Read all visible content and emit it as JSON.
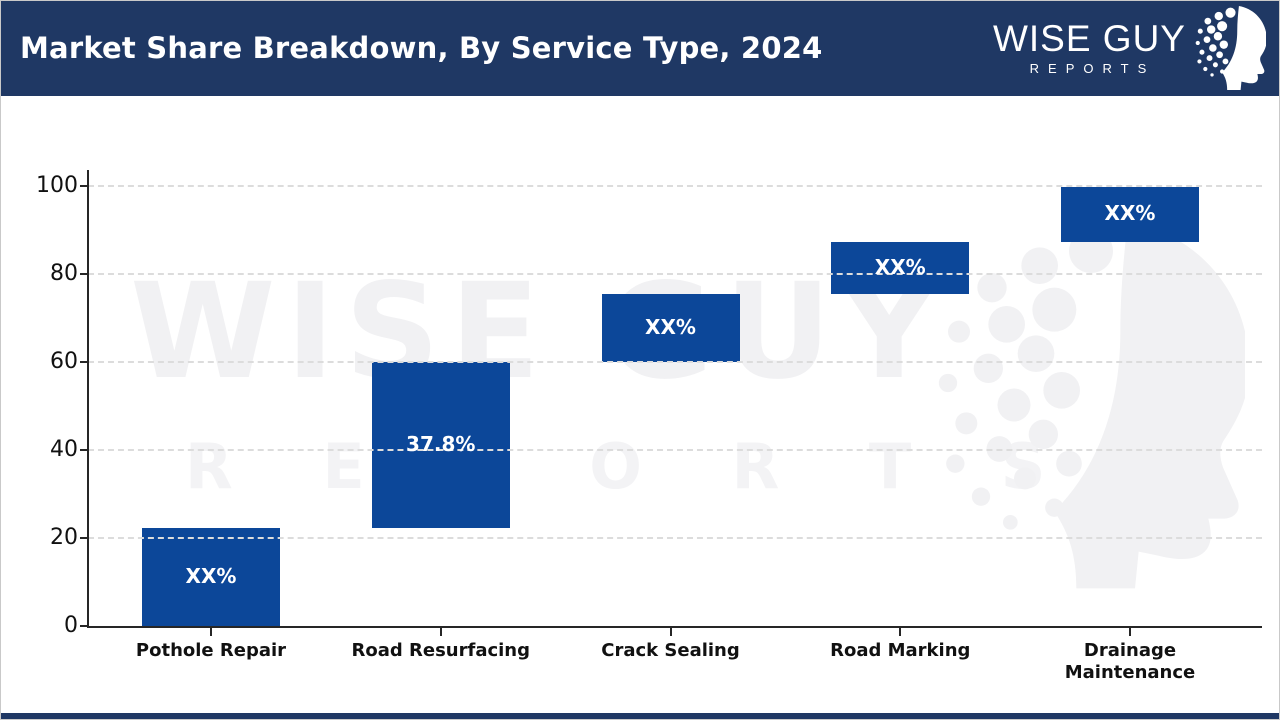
{
  "header": {
    "title": "Market Share Breakdown, By Service Type, 2024",
    "background_color": "#1f3864",
    "logo": {
      "line1": "WISE GUY",
      "line2": "REPORTS"
    }
  },
  "watermark": {
    "line1": "WISE GUY",
    "line2": "R E P O R T S"
  },
  "chart_data": {
    "type": "bar",
    "subtype": "waterfall",
    "title": "Market Share Breakdown, By Service Type, 2024",
    "categories": [
      "Pothole Repair",
      "Road Resurfacing",
      "Crack Sealing",
      "Road Marking",
      "Drainage Maintenance"
    ],
    "category_lines": [
      [
        "Pothole Repair"
      ],
      [
        "Road Resurfacing"
      ],
      [
        "Crack Sealing"
      ],
      [
        "Road Marking"
      ],
      [
        "Drainage",
        "Maintenance"
      ]
    ],
    "segments": [
      {
        "category": "Pothole Repair",
        "start": 0,
        "end": 22.3,
        "label": "XX%"
      },
      {
        "category": "Road Resurfacing",
        "start": 22.3,
        "end": 60.1,
        "label": "37.8%"
      },
      {
        "category": "Crack Sealing",
        "start": 60.1,
        "end": 75.5,
        "label": "XX%"
      },
      {
        "category": "Road Marking",
        "start": 75.5,
        "end": 87.3,
        "label": "XX%"
      },
      {
        "category": "Drainage Maintenance",
        "start": 87.3,
        "end": 99.8,
        "label": "XX%"
      }
    ],
    "xlabel": "",
    "ylabel": "",
    "ylim": [
      0,
      100
    ],
    "yticks": [
      0,
      20,
      40,
      60,
      80,
      100
    ],
    "grid": "horizontal-dashed",
    "grid_above_bars": true,
    "legend": "none",
    "bar_color": "#0c4799",
    "bar_label_color": "#ffffff",
    "axis_color": "#262626"
  }
}
